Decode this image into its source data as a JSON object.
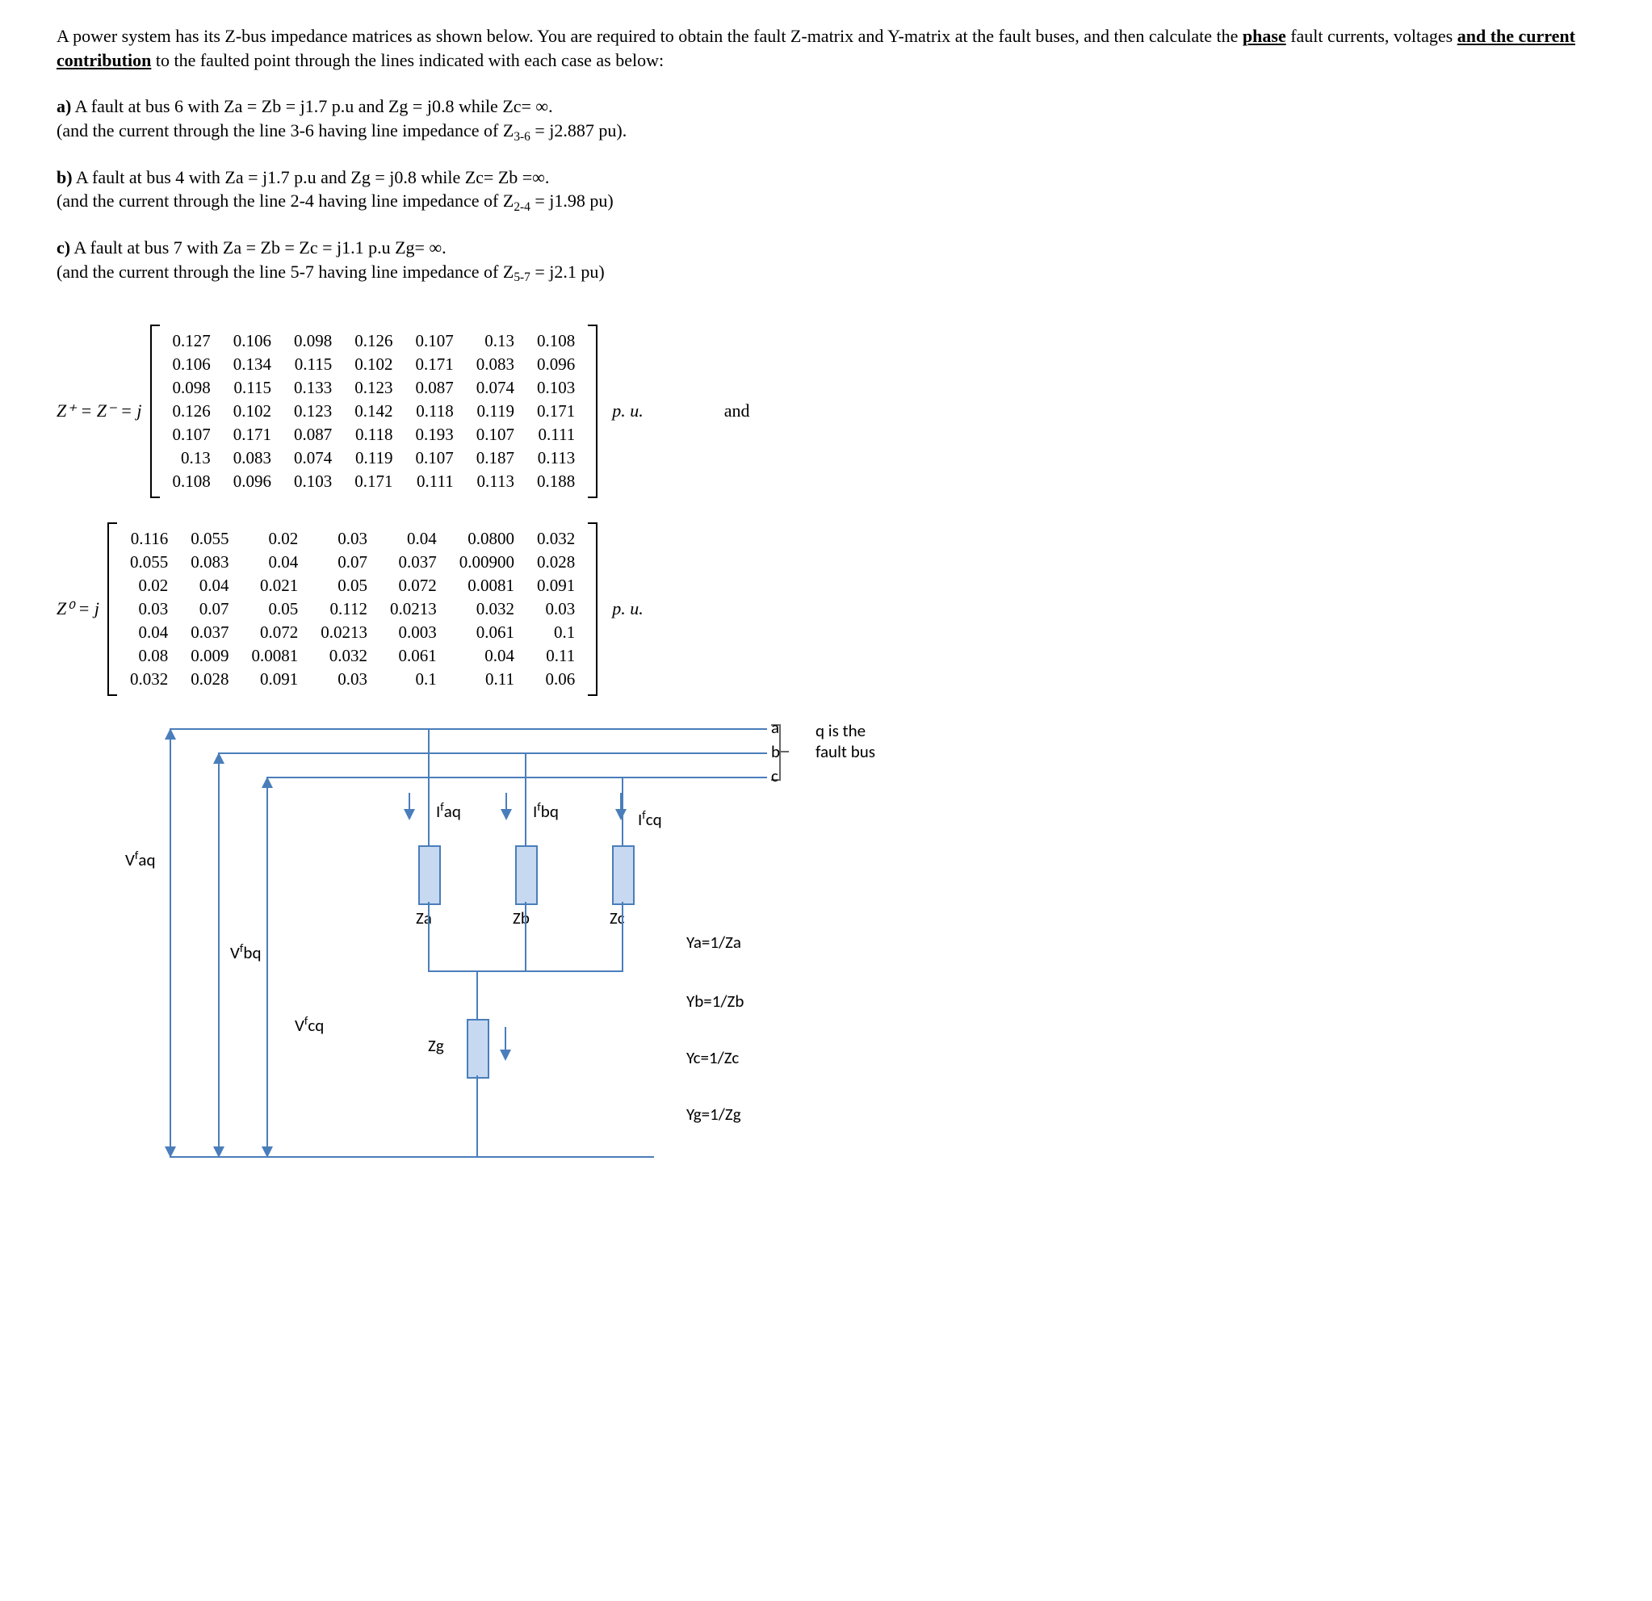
{
  "intro": {
    "p1": "A power system has its Z-bus impedance matrices as shown below. You are required to obtain the fault Z-matrix and Y-matrix at the fault buses, and then calculate the ",
    "p1_u1": "phase",
    "p1_mid": " fault currents, voltages ",
    "p1_u2": "and the current contribution",
    "p1_end": " to the faulted point through the lines indicated with each case as below:"
  },
  "parts": {
    "a": {
      "label": "a)",
      "line1": " A fault at bus 6 with Za = Zb = j1.7 p.u and Zg = j0.8 while Zc= ∞.",
      "line2": "(and the current through the line 3-6 having line impedance of Z",
      "sub": "3-6",
      "line2_end": " = j2.887 pu)."
    },
    "b": {
      "label": "b)",
      "line1": " A fault at bus 4 with Za = j1.7 p.u and Zg = j0.8 while Zc= Zb =∞.",
      "line2": "(and the current through the line 2-4 having line impedance of Z",
      "sub": "2-4",
      "line2_end": " = j1.98 pu)"
    },
    "c": {
      "label": "c)",
      "line1": " A fault at bus 7 with Za = Zb = Zc = j1.1 p.u  Zg= ∞.",
      "line2": "(and the current through the line 5-7 having line impedance of Z",
      "sub": "5-7",
      "line2_end": " = j2.1 pu)"
    }
  },
  "mat1": {
    "prefix": "Z⁺ = Z⁻ = j",
    "suffix": "p. u.",
    "and": "and",
    "rows": [
      [
        "0.127",
        "0.106",
        "0.098",
        "0.126",
        "0.107",
        "0.13",
        "0.108"
      ],
      [
        "0.106",
        "0.134",
        "0.115",
        "0.102",
        "0.171",
        "0.083",
        "0.096"
      ],
      [
        "0.098",
        "0.115",
        "0.133",
        "0.123",
        "0.087",
        "0.074",
        "0.103"
      ],
      [
        "0.126",
        "0.102",
        "0.123",
        "0.142",
        "0.118",
        "0.119",
        "0.171"
      ],
      [
        "0.107",
        "0.171",
        "0.087",
        "0.118",
        "0.193",
        "0.107",
        "0.111"
      ],
      [
        "0.13",
        "0.083",
        "0.074",
        "0.119",
        "0.107",
        "0.187",
        "0.113"
      ],
      [
        "0.108",
        "0.096",
        "0.103",
        "0.171",
        "0.111",
        "0.113",
        "0.188"
      ]
    ]
  },
  "mat2": {
    "prefix": "Z⁰ = j",
    "suffix": "p. u.",
    "rows": [
      [
        "0.116",
        "0.055",
        "0.02",
        "0.03",
        "0.04",
        "0.0800",
        "0.032"
      ],
      [
        "0.055",
        "0.083",
        "0.04",
        "0.07",
        "0.037",
        "0.00900",
        "0.028"
      ],
      [
        "0.02",
        "0.04",
        "0.021",
        "0.05",
        "0.072",
        "0.0081",
        "0.091"
      ],
      [
        "0.03",
        "0.07",
        "0.05",
        "0.112",
        "0.0213",
        "0.032",
        "0.03"
      ],
      [
        "0.04",
        "0.037",
        "0.072",
        "0.0213",
        "0.003",
        "0.061",
        "0.1"
      ],
      [
        "0.08",
        "0.009",
        "0.0081",
        "0.032",
        "0.061",
        "0.04",
        "0.11"
      ],
      [
        "0.032",
        "0.028",
        "0.091",
        "0.03",
        "0.1",
        "0.11",
        "0.06"
      ]
    ]
  },
  "circuit": {
    "terminals": {
      "a": "a",
      "b": "b",
      "c": "c"
    },
    "q_note_l1": "q is the",
    "q_note_l2": "fault bus",
    "currents": {
      "a": "Iᶠaq",
      "b": "Iᶠbq",
      "c": "Iᶠcq"
    },
    "voltages": {
      "a": "Vᶠaq",
      "b": "Vᶠbq",
      "c": "Vᶠcq"
    },
    "imps": {
      "Za": "Za",
      "Zb": "Zb",
      "Zc": "Zc",
      "Zg": "Zg"
    },
    "adm": {
      "Ya": "Ya=1/Za",
      "Yb": "Yb=1/Zb",
      "Yc": "Yc=1/Zc",
      "Yg": "Yg=1/Zg"
    },
    "colors": {
      "wire": "#4a7ebb",
      "block_fill": "#c6d9f1",
      "brace": "#666666"
    }
  }
}
